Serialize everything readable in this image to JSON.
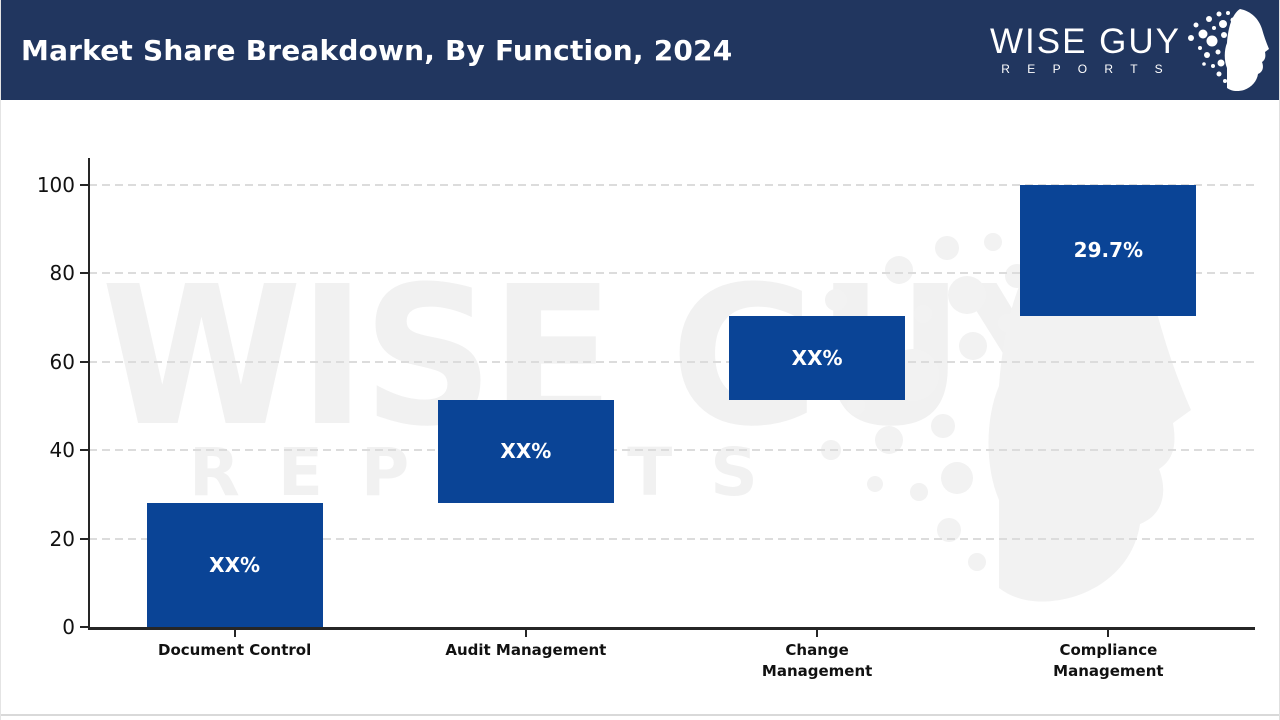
{
  "header": {
    "title": "Market Share Breakdown, By Function, 2024",
    "bg_color": "#21365f",
    "logo": {
      "wordmark": "WISE GUY",
      "subtext": "R E P O R T S"
    }
  },
  "watermark": {
    "wordmark": "WISE GUY",
    "subtext": "REPORTS"
  },
  "chart_data": {
    "type": "bar",
    "subtype": "floating-waterfall",
    "title": "Market Share Breakdown, By Function, 2024",
    "categories": [
      "Document Control",
      "Audit Management",
      "Change Management",
      "Compliance Management"
    ],
    "series": [
      {
        "name": "Market share (%)",
        "values": [
          28.0,
          23.4,
          18.9,
          29.7
        ],
        "segment_start": [
          0.0,
          28.0,
          51.4,
          70.3
        ],
        "segment_end": [
          28.0,
          51.4,
          70.3,
          100.0
        ]
      }
    ],
    "bar_labels": [
      "XX%",
      "XX%",
      "XX%",
      "29.7%"
    ],
    "xlabel": "",
    "ylabel": "",
    "yticks": [
      0,
      20,
      40,
      60,
      80,
      100
    ],
    "ylim": [
      0,
      106
    ],
    "grid": {
      "horizontal": true,
      "style": "dashed"
    },
    "legend": "none",
    "colors": {
      "bar": "#0a4496",
      "bar_label": "#ffffff",
      "grid": "#dcdcdc",
      "axis": "#262626",
      "tick_label": "#111111",
      "header_bg": "#21365f",
      "watermark": "#f1f1f1"
    }
  }
}
